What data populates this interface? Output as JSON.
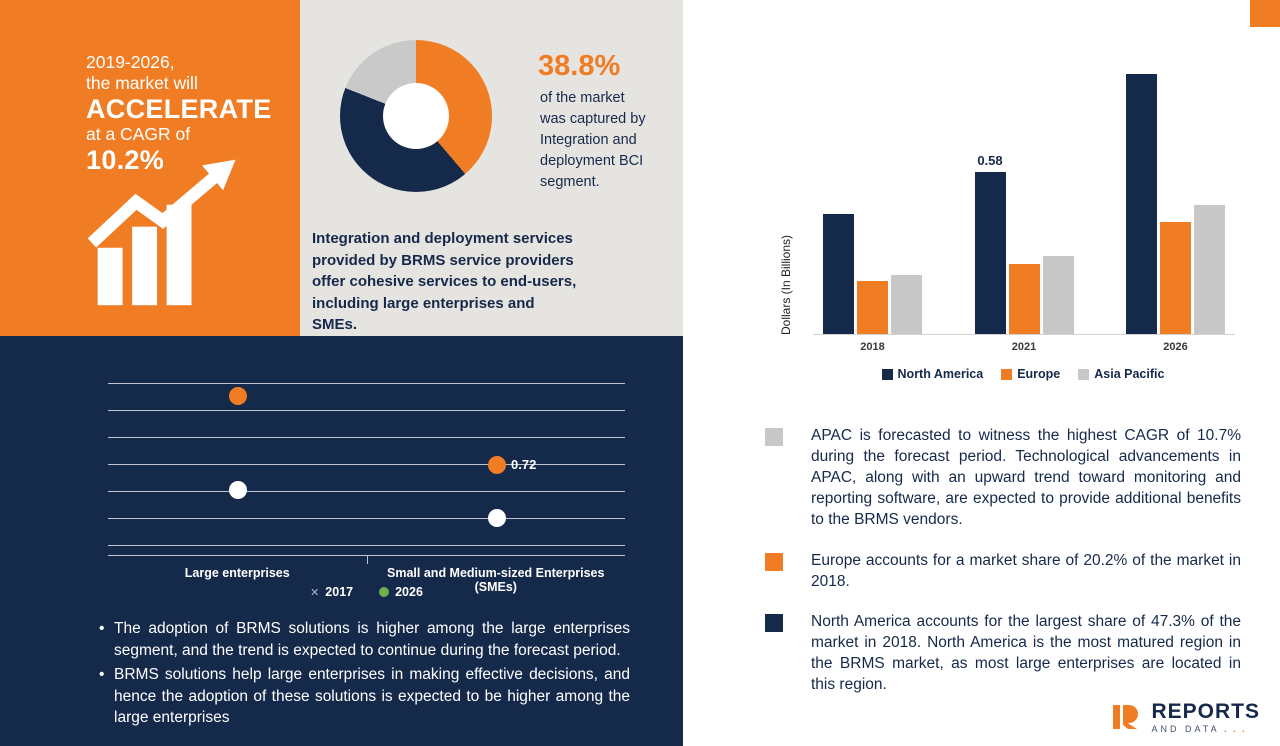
{
  "colors": {
    "orange": "#F07C23",
    "navy": "#15294A",
    "panel_gray": "#E5E4E1",
    "bar_gray": "#C8C8C8",
    "legend_green": "#6FB04C",
    "white": "#FFFFFF"
  },
  "headline": {
    "line1": "2019-2026,",
    "line2": "the market will",
    "line3": "ACCELERATE",
    "line4": "at a CAGR of",
    "line5": "10.2%"
  },
  "segment_stat": {
    "value": "38.8%",
    "caption": "of the market was captured by Integration and deployment BCI segment.",
    "description": "Integration and deployment services provided by BRMS service providers offer cohesive services to end-users, including large enterprises and SMEs."
  },
  "enterprise_section": {
    "categories": [
      "Large enterprises",
      "Small and Medium-sized Enterprises (SMEs)"
    ],
    "legend": [
      "2017",
      "2026"
    ],
    "value_label": "0.72",
    "bullets": [
      "The adoption of BRMS solutions is higher among the large enterprises segment, and the trend is expected to continue during the forecast period.",
      "BRMS solutions help large enterprises in making effective decisions, and hence the adoption of these solutions is expected to be higher among the large enterprises"
    ]
  },
  "regional_section": {
    "ylabel": "Dollars (In Billions)",
    "bar_label": "0.58",
    "notes": [
      {
        "region": "Asia Pacific",
        "text": "APAC is forecasted to witness the highest CAGR of 10.7% during the forecast period. Technological advancements in APAC, along with an upward trend toward monitoring and reporting software, are expected to provide additional benefits to the BRMS vendors."
      },
      {
        "region": "Europe",
        "text": "Europe accounts for a market share of 20.2% of the market in 2018."
      },
      {
        "region": "North America",
        "text": "North America accounts for the largest share of 47.3% of the market in 2018. North America is the most matured region in the BRMS market, as most large enterprises are located in this region."
      }
    ]
  },
  "logo": {
    "name": "REPORTS",
    "sub": "AND DATA",
    "dots": " . . ."
  },
  "chart_data": [
    {
      "type": "pie",
      "subtype": "donut",
      "labels": [
        "Integration and deployment BCI segment",
        "Other",
        "Other"
      ],
      "values": [
        38.8,
        42.2,
        19.0
      ],
      "colors": [
        "#F07C23",
        "#15294A",
        "#C9C9C9"
      ]
    },
    {
      "type": "bar",
      "title": "",
      "categories": [
        "2018",
        "2021",
        "2026"
      ],
      "ylabel": "Dollars (In Billions)",
      "ylim": [
        0,
        1.0
      ],
      "legend_position": "bottom",
      "series": [
        {
          "name": "North America",
          "color": "#15294A",
          "values": [
            0.43,
            0.58,
            0.93
          ],
          "labels": [
            "",
            "0.58",
            ""
          ]
        },
        {
          "name": "Europe",
          "color": "#F07C23",
          "values": [
            0.19,
            0.25,
            0.4
          ],
          "labels": [
            "",
            "",
            ""
          ]
        },
        {
          "name": "Asia Pacific",
          "color": "#C8C8C8",
          "values": [
            0.21,
            0.28,
            0.46
          ],
          "labels": [
            "",
            "",
            ""
          ]
        }
      ]
    },
    {
      "type": "scatter",
      "categories": [
        "Large enterprises",
        "Small and Medium-sized Enterprises (SMEs)"
      ],
      "ylim": [
        0,
        1.45
      ],
      "series": [
        {
          "name": "2026",
          "color": "#F07C23",
          "values": [
            1.33,
            0.72
          ],
          "labels": [
            "",
            "0.72"
          ]
        },
        {
          "name": "2017",
          "color": "#FFFFFF",
          "values": [
            0.49,
            0.24
          ],
          "labels": [
            "",
            ""
          ]
        }
      ]
    }
  ]
}
